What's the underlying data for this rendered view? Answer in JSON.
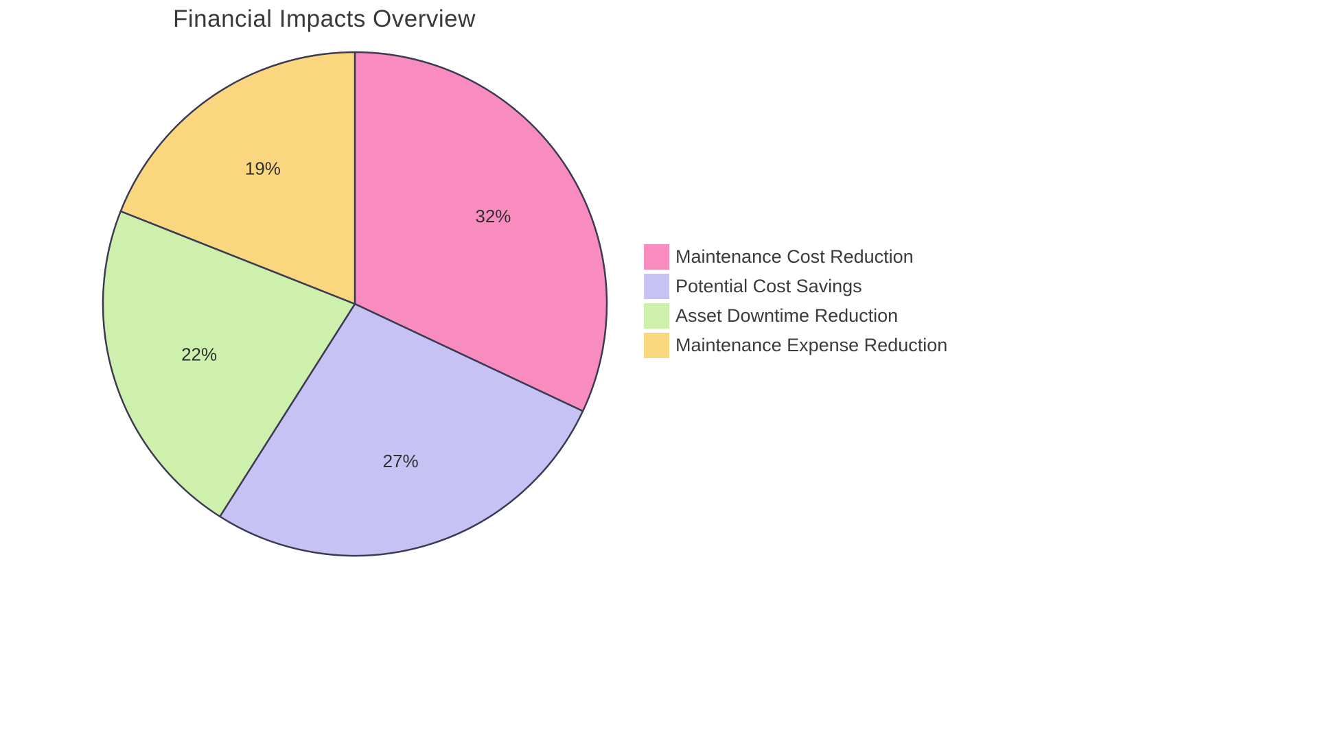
{
  "title": "Financial Impacts Overview",
  "chart_data": {
    "type": "pie",
    "title": "Financial Impacts Overview",
    "categories": [
      "Maintenance Cost Reduction",
      "Potential Cost Savings",
      "Asset Downtime Reduction",
      "Maintenance Expense Reduction"
    ],
    "values": [
      32,
      27,
      22,
      19
    ],
    "labels": [
      "32%",
      "27%",
      "22%",
      "19%"
    ],
    "colors": [
      "#f98cbe",
      "#c6c2f4",
      "#cdf1ac",
      "#fad77e"
    ],
    "stroke_color": "#3a3a53",
    "legend_position": "right",
    "start_angle_deg": 0,
    "direction": "clockwise"
  }
}
